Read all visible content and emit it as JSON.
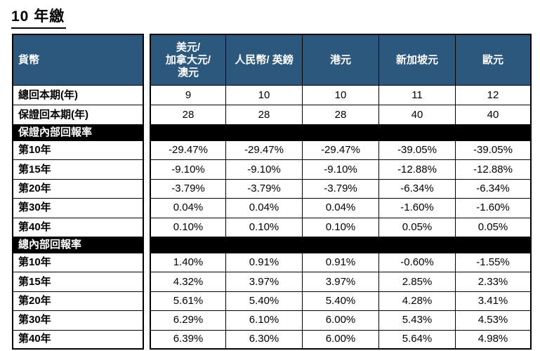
{
  "title": "10 年繳",
  "colors": {
    "header_bg": "#2C587D",
    "section_bg": "#000000",
    "header_text": "#FFFFFF",
    "body_text": "#000000",
    "border": "#000000"
  },
  "table": {
    "corner_label": "貨幣",
    "columns": [
      "美元/\n加拿大元/\n澳元",
      "人民幣/ 英鎊",
      "港元",
      "新加坡元",
      "歐元"
    ],
    "rows": [
      {
        "type": "data",
        "label": "總回本期(年)",
        "values": [
          "9",
          "10",
          "10",
          "11",
          "12"
        ]
      },
      {
        "type": "data",
        "label": "保證回本期(年)",
        "values": [
          "28",
          "28",
          "28",
          "40",
          "40"
        ]
      },
      {
        "type": "section",
        "label": "保證內部回報率"
      },
      {
        "type": "data",
        "label": "第10年",
        "values": [
          "-29.47%",
          "-29.47%",
          "-29.47%",
          "-39.05%",
          "-39.05%"
        ]
      },
      {
        "type": "data",
        "label": "第15年",
        "values": [
          "-9.10%",
          "-9.10%",
          "-9.10%",
          "-12.88%",
          "-12.88%"
        ]
      },
      {
        "type": "data",
        "label": "第20年",
        "values": [
          "-3.79%",
          "-3.79%",
          "-3.79%",
          "-6.34%",
          "-6.34%"
        ]
      },
      {
        "type": "data",
        "label": "第30年",
        "values": [
          "0.04%",
          "0.04%",
          "0.04%",
          "-1.60%",
          "-1.60%"
        ]
      },
      {
        "type": "data",
        "label": "第40年",
        "values": [
          "0.10%",
          "0.10%",
          "0.10%",
          "0.05%",
          "0.05%"
        ]
      },
      {
        "type": "section",
        "label": "總內部回報率"
      },
      {
        "type": "data",
        "label": "第10年",
        "values": [
          "1.40%",
          "0.91%",
          "0.91%",
          "-0.60%",
          "-1.55%"
        ]
      },
      {
        "type": "data",
        "label": "第15年",
        "values": [
          "4.32%",
          "3.97%",
          "3.97%",
          "2.85%",
          "2.33%"
        ]
      },
      {
        "type": "data",
        "label": "第20年",
        "values": [
          "5.61%",
          "5.40%",
          "5.40%",
          "4.28%",
          "3.41%"
        ]
      },
      {
        "type": "data",
        "label": "第30年",
        "values": [
          "6.29%",
          "6.10%",
          "6.00%",
          "5.43%",
          "4.53%"
        ]
      },
      {
        "type": "data",
        "label": "第40年",
        "values": [
          "6.39%",
          "6.30%",
          "6.00%",
          "5.64%",
          "4.98%"
        ]
      }
    ]
  }
}
